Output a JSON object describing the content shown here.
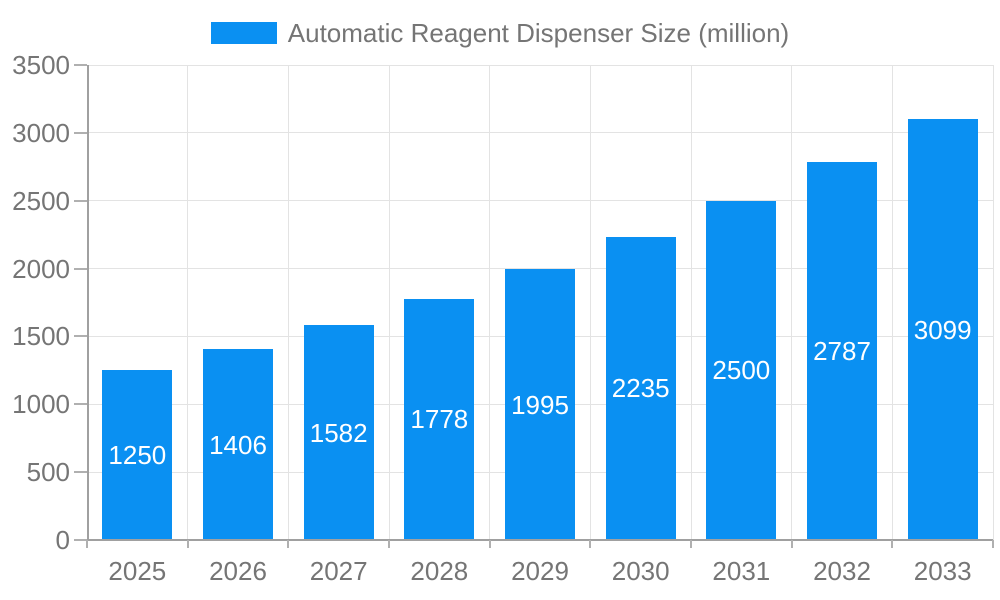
{
  "legend": {
    "label": "Automatic Reagent Dispenser Size (million)"
  },
  "chart_data": {
    "type": "bar",
    "title": "Automatic Reagent Dispenser Size (million)",
    "series": [
      {
        "name": "Automatic Reagent Dispenser Size (million)",
        "values": [
          1250,
          1406,
          1582,
          1778,
          1995,
          2235,
          2500,
          2787,
          3099
        ]
      }
    ],
    "categories": [
      "2025",
      "2026",
      "2027",
      "2028",
      "2029",
      "2030",
      "2031",
      "2032",
      "2033"
    ],
    "values": [
      1250,
      1406,
      1582,
      1778,
      1995,
      2235,
      2500,
      2787,
      3099
    ],
    "xlabel": "",
    "ylabel": "",
    "ylim": [
      0,
      3500
    ],
    "yticks": [
      0,
      500,
      1000,
      1500,
      2000,
      2500,
      3000,
      3500
    ],
    "grid": true,
    "legend_position": "top-center",
    "value_label_position": "inside-center",
    "colors": {
      "bar": "#0a90f2",
      "value_text": "#ffffff",
      "axis_text": "#757575",
      "grid_line": "#e3e3e3",
      "axis_line": "#a0a0a0",
      "tick": "#b0b0b0",
      "background": "#ffffff"
    }
  }
}
